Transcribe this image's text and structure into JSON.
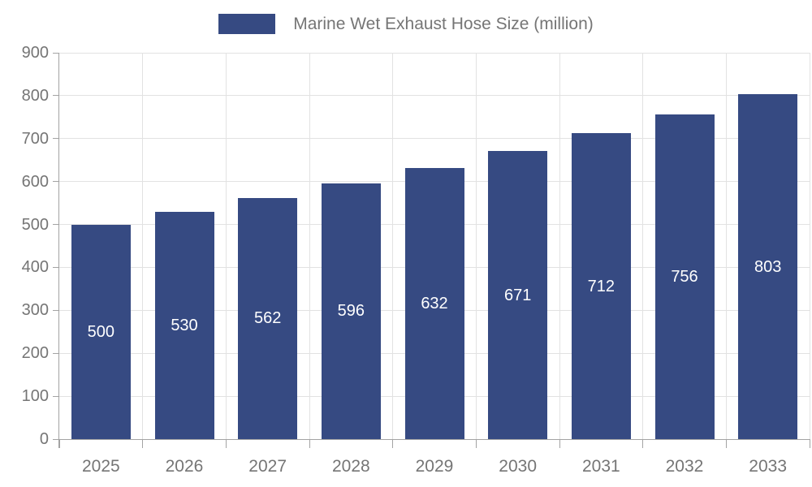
{
  "chart_data": {
    "type": "bar",
    "title": "Marine Wet Exhaust Hose Size (million)",
    "legend": {
      "position": "top",
      "label": "Marine Wet Exhaust Hose Size (million)"
    },
    "categories": [
      "2025",
      "2026",
      "2027",
      "2028",
      "2029",
      "2030",
      "2031",
      "2032",
      "2033"
    ],
    "values": [
      500,
      530,
      562,
      596,
      632,
      671,
      712,
      756,
      803
    ],
    "xlabel": "",
    "ylabel": "",
    "ylim": [
      0,
      900
    ],
    "ytick_step": 100,
    "grid": true,
    "colors": {
      "bar": "#364a82",
      "bar_value_label": "#ffffff",
      "axis_text": "#757575",
      "grid_line": "#e2e2e2",
      "axis_line": "#a3a3a3",
      "background": "#ffffff"
    }
  }
}
